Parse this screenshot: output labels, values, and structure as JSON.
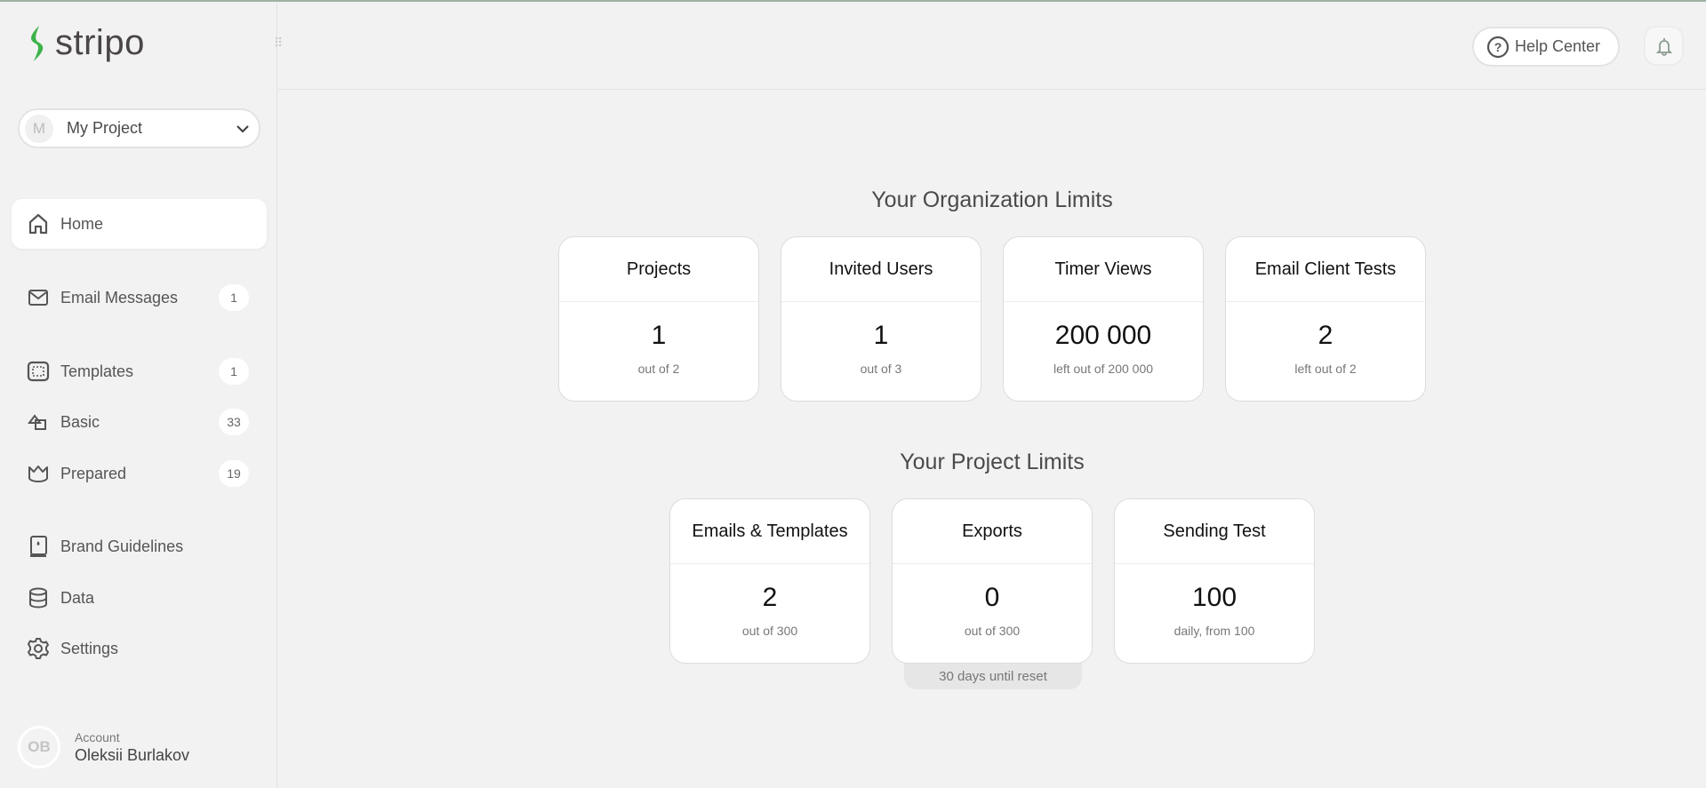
{
  "brand": {
    "name": "stripo",
    "accent": "#3cb34a"
  },
  "project_select": {
    "avatar": "M",
    "name": "My Project"
  },
  "sidebar": {
    "items": [
      {
        "label": "Home",
        "icon": "home-icon",
        "badge": null,
        "active": true
      },
      {
        "label": "Email Messages",
        "icon": "envelope-icon",
        "badge": "1"
      },
      {
        "label": "Templates",
        "icon": "template-icon",
        "badge": "1"
      },
      {
        "label": "Basic",
        "icon": "shapes-icon",
        "badge": "33"
      },
      {
        "label": "Prepared",
        "icon": "crown-icon",
        "badge": "19"
      },
      {
        "label": "Brand Guidelines",
        "icon": "brand-book-icon",
        "badge": null
      },
      {
        "label": "Data",
        "icon": "database-icon",
        "badge": null
      },
      {
        "label": "Settings",
        "icon": "gear-icon",
        "badge": null
      }
    ]
  },
  "account": {
    "avatar": "OB",
    "label": "Account",
    "name": "Oleksii Burlakov"
  },
  "header": {
    "help_label": "Help Center"
  },
  "org_limits": {
    "title": "Your Organization Limits",
    "cards": [
      {
        "title": "Projects",
        "value": "1",
        "sub": "out of 2"
      },
      {
        "title": "Invited Users",
        "value": "1",
        "sub": "out of 3"
      },
      {
        "title": "Timer Views",
        "value": "200 000",
        "sub": "left out of 200 000"
      },
      {
        "title": "Email Client Tests",
        "value": "2",
        "sub": "left out of 2"
      }
    ]
  },
  "project_limits": {
    "title": "Your Project Limits",
    "cards": [
      {
        "title": "Emails & Templates",
        "value": "2",
        "sub": "out of 300"
      },
      {
        "title": "Exports",
        "value": "0",
        "sub": "out of 300"
      },
      {
        "title": "Sending Test",
        "value": "100",
        "sub": "daily, from 100"
      }
    ],
    "reset_note": "30 days until reset"
  }
}
